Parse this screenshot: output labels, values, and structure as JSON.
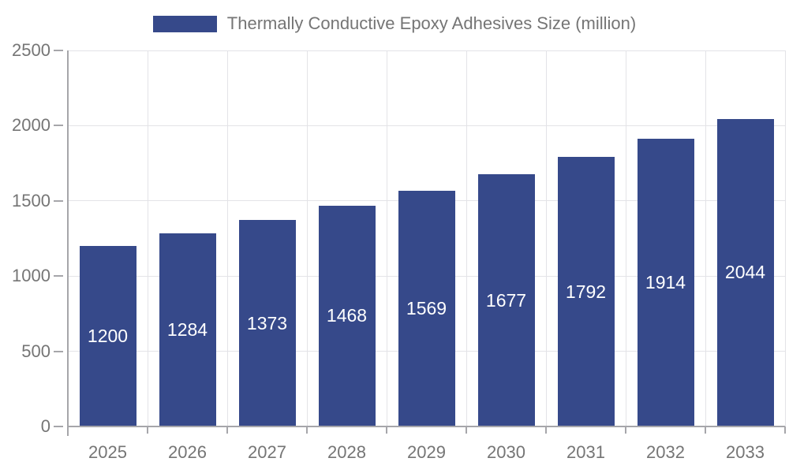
{
  "legend": {
    "label": "Thermally Conductive Epoxy Adhesives Size (million)"
  },
  "chart_data": {
    "type": "bar",
    "title": "Thermally Conductive Epoxy Adhesives Size (million)",
    "categories": [
      "2025",
      "2026",
      "2027",
      "2028",
      "2029",
      "2030",
      "2031",
      "2032",
      "2033"
    ],
    "series": [
      {
        "name": "Thermally Conductive Epoxy Adhesives Size (million)",
        "values": [
          1200,
          1284,
          1373,
          1468,
          1569,
          1677,
          1792,
          1914,
          2044
        ]
      }
    ],
    "xlabel": "",
    "ylabel": "",
    "ylim": [
      0,
      2500
    ],
    "yticks": [
      0,
      500,
      1000,
      1500,
      2000,
      2500
    ],
    "grid": true,
    "legend_position": "top",
    "bar_value_labels": true,
    "value_label_position": "inside-middle"
  },
  "colors": {
    "bar": "#36498A",
    "grid": "#E3E3E7",
    "axis": "#A6A6AA",
    "text": "#757575",
    "value_label": "#FFFFFF",
    "background": "#FFFFFF"
  }
}
